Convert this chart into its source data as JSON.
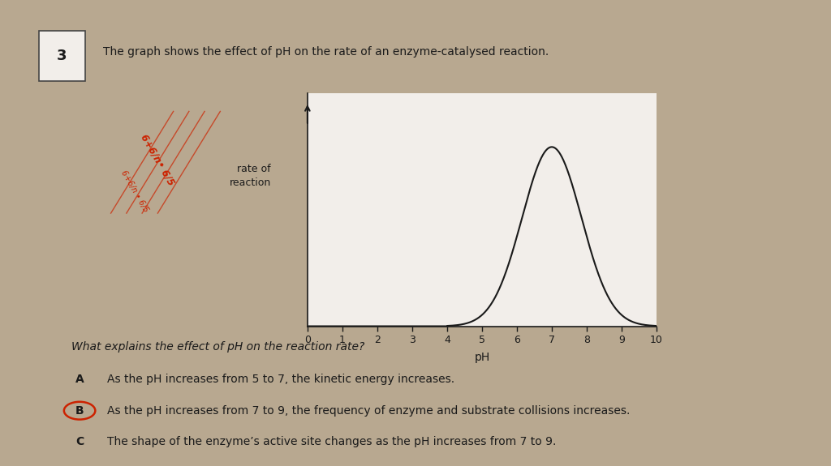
{
  "title": "The graph shows the effect of pH on the rate of an enzyme-catalysed reaction.",
  "question_number": "3",
  "ylabel": "rate of\nreaction",
  "xlabel": "pH",
  "x_ticks": [
    0,
    1,
    2,
    3,
    4,
    5,
    6,
    7,
    8,
    9,
    10
  ],
  "curve_peak_x": 7.0,
  "curve_peak_sigma": 0.85,
  "xlim": [
    0,
    10
  ],
  "ylim": [
    0,
    1.3
  ],
  "bg_color": "#b8a890",
  "paper_color": "#f2eeea",
  "line_color": "#1a1a1a",
  "text_color": "#1a1a1a",
  "red_color": "#cc2200",
  "question": "What explains the effect of pH on the reaction rate?",
  "options": [
    {
      "label": "A",
      "text": "As the pH increases from 5 to 7, the kinetic energy increases.",
      "circled": false
    },
    {
      "label": "B",
      "text": "As the pH increases from 7 to 9, the frequency of enzyme and substrate collisions increases.",
      "circled": true
    },
    {
      "label": "C",
      "text": "The shape of the enzyme’s active site changes as the pH increases from 7 to 9.",
      "circled": false
    }
  ],
  "title_fontsize": 10,
  "axis_fontsize": 9,
  "label_fontsize": 9,
  "question_fontsize": 10,
  "option_fontsize": 10,
  "num_fontsize": 13
}
